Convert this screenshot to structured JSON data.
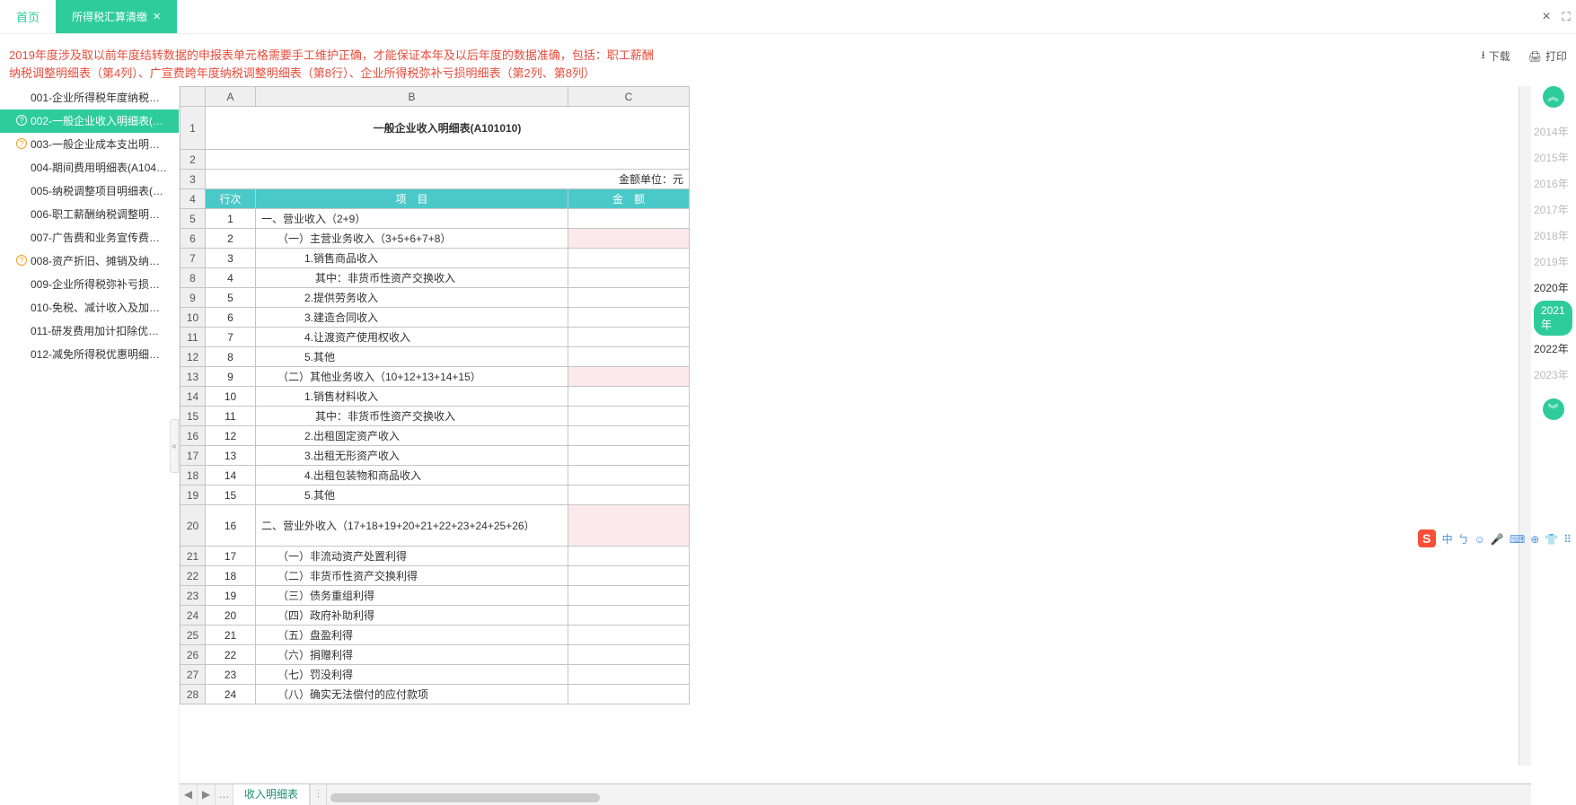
{
  "tabs": {
    "home": "首页",
    "active": "所得税汇算清缴"
  },
  "notice": "2019年度涉及取以前年度结转数据的申报表单元格需要手工维护正确，才能保证本年及以后年度的数据准确，包括：职工薪酬纳税调整明细表（第4列）、广宣费跨年度纳税调整明细表（第8行）、企业所得税弥补亏损明细表（第2列、第8列）",
  "actions": {
    "download": "下载",
    "print": "打印"
  },
  "side": [
    {
      "label": "001-企业所得税年度纳税申…",
      "warn": false,
      "active": false
    },
    {
      "label": "002-一般企业收入明细表(A1…",
      "warn": true,
      "active": true
    },
    {
      "label": "003-一般企业成本支出明细…",
      "warn": true,
      "active": false
    },
    {
      "label": "004-期间费用明细表(A1040…",
      "warn": false,
      "active": false
    },
    {
      "label": "005-纳税调整项目明细表(A1…",
      "warn": false,
      "active": false
    },
    {
      "label": "006-职工薪酬纳税调整明细…",
      "warn": false,
      "active": false
    },
    {
      "label": "007-广告费和业务宣传费跨…",
      "warn": false,
      "active": false
    },
    {
      "label": "008-资产折旧、摊销及纳税…",
      "warn": true,
      "active": false
    },
    {
      "label": "009-企业所得税弥补亏损明…",
      "warn": false,
      "active": false
    },
    {
      "label": "010-免税、减计收入及加计…",
      "warn": false,
      "active": false
    },
    {
      "label": "011-研发费用加计扣除优惠…",
      "warn": false,
      "active": false
    },
    {
      "label": "012-减免所得税优惠明细表(…",
      "warn": false,
      "active": false
    }
  ],
  "sheet": {
    "title": "一般企业收入明细表(A101010)",
    "unit": "金额单位：元",
    "cols": [
      "A",
      "B",
      "C"
    ],
    "colHeaders": [
      "行次",
      "项　目",
      "金　额"
    ],
    "rows": [
      {
        "n": 5,
        "rc": "1",
        "item": "一、营业收入（2+9）",
        "pink": false
      },
      {
        "n": 6,
        "rc": "2",
        "item": "　　（一）主营业务收入（3+5+6+7+8）",
        "pink": true
      },
      {
        "n": 7,
        "rc": "3",
        "item": "　　　　1.销售商品收入",
        "pink": false
      },
      {
        "n": 8,
        "rc": "4",
        "item": "　　　　　其中：非货币性资产交换收入",
        "pink": false
      },
      {
        "n": 9,
        "rc": "5",
        "item": "　　　　2.提供劳务收入",
        "pink": false
      },
      {
        "n": 10,
        "rc": "6",
        "item": "　　　　3.建造合同收入",
        "pink": false
      },
      {
        "n": 11,
        "rc": "7",
        "item": "　　　　4.让渡资产使用权收入",
        "pink": false
      },
      {
        "n": 12,
        "rc": "8",
        "item": "　　　　5.其他",
        "pink": false
      },
      {
        "n": 13,
        "rc": "9",
        "item": "　　（二）其他业务收入（10+12+13+14+15）",
        "pink": true
      },
      {
        "n": 14,
        "rc": "10",
        "item": "　　　　1.销售材料收入",
        "pink": false
      },
      {
        "n": 15,
        "rc": "11",
        "item": "　　　　　其中：非货币性资产交换收入",
        "pink": false
      },
      {
        "n": 16,
        "rc": "12",
        "item": "　　　　2.出租固定资产收入",
        "pink": false
      },
      {
        "n": 17,
        "rc": "13",
        "item": "　　　　3.出租无形资产收入",
        "pink": false
      },
      {
        "n": 18,
        "rc": "14",
        "item": "　　　　4.出租包装物和商品收入",
        "pink": false
      },
      {
        "n": 19,
        "rc": "15",
        "item": "　　　　5.其他",
        "pink": false
      },
      {
        "n": 20,
        "rc": "16",
        "item": "二、营业外收入（17+18+19+20+21+22+23+24+25+26）",
        "pink": true,
        "tall": true
      },
      {
        "n": 21,
        "rc": "17",
        "item": "　　（一）非流动资产处置利得",
        "pink": false
      },
      {
        "n": 22,
        "rc": "18",
        "item": "　　（二）非货币性资产交换利得",
        "pink": false
      },
      {
        "n": 23,
        "rc": "19",
        "item": "　　（三）债务重组利得",
        "pink": false
      },
      {
        "n": 24,
        "rc": "20",
        "item": "　　（四）政府补助利得",
        "pink": false
      },
      {
        "n": 25,
        "rc": "21",
        "item": "　　（五）盘盈利得",
        "pink": false
      },
      {
        "n": 26,
        "rc": "22",
        "item": "　　（六）捐赠利得",
        "pink": false
      },
      {
        "n": 27,
        "rc": "23",
        "item": "　　（七）罚没利得",
        "pink": false
      },
      {
        "n": 28,
        "rc": "24",
        "item": "　　（八）确实无法偿付的应付款项",
        "pink": false
      }
    ],
    "sheetTab": "收入明细表"
  },
  "years": [
    {
      "y": "2014年",
      "cls": ""
    },
    {
      "y": "2015年",
      "cls": ""
    },
    {
      "y": "2016年",
      "cls": ""
    },
    {
      "y": "2017年",
      "cls": ""
    },
    {
      "y": "2018年",
      "cls": ""
    },
    {
      "y": "2019年",
      "cls": ""
    },
    {
      "y": "2020年",
      "cls": "dark"
    },
    {
      "y": "2021年",
      "cls": "sel"
    },
    {
      "y": "2022年",
      "cls": "dark"
    },
    {
      "y": "2023年",
      "cls": ""
    }
  ],
  "ime": [
    "中",
    "ㄅ",
    "☺",
    "🎤",
    "⌨",
    "⊕",
    "👕",
    "⠿"
  ]
}
